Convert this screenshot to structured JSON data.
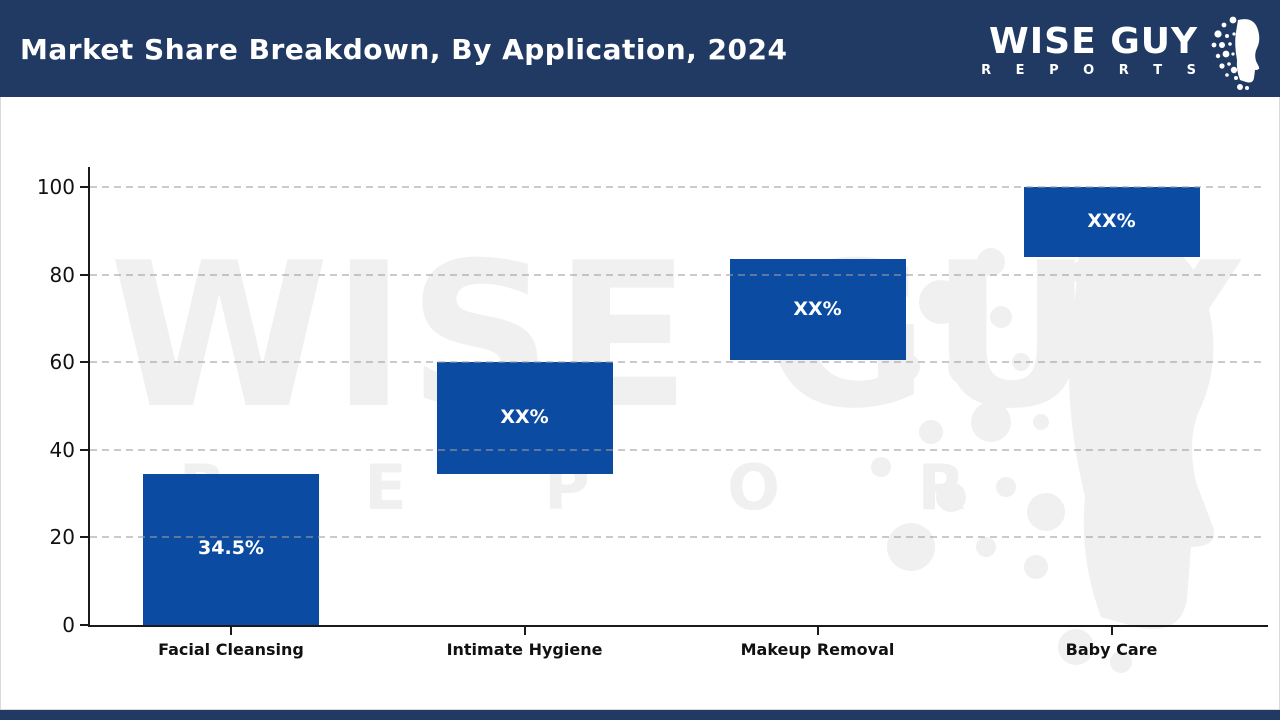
{
  "header": {
    "title": "Market Share Breakdown, By Application, 2024",
    "logo": {
      "line1": "WISE GUY",
      "line2": "R E P O R T S"
    }
  },
  "watermark": {
    "line1": "WISE GUY",
    "line2": "R E P O R T S"
  },
  "colors": {
    "header_bg": "#203a64",
    "footer_bg": "#203a64",
    "bar": "#0b4ba2",
    "bar_label_text": "#ffffff",
    "title_text": "#ffffff",
    "axis": "#1a1a1a",
    "gridline": "#c9c9c9",
    "watermark": "#f0f0f1"
  },
  "chart_data": {
    "type": "bar",
    "subtype": "waterfall",
    "title": "Market Share Breakdown, By Application, 2024",
    "xlabel": "",
    "ylabel": "",
    "categories": [
      "Facial Cleansing",
      "Intimate Hygiene",
      "Makeup Removal",
      "Baby Care"
    ],
    "segments": [
      {
        "category": "Facial Cleansing",
        "start": 0,
        "end": 34.5,
        "label": "34.5%"
      },
      {
        "category": "Intimate Hygiene",
        "start": 34.5,
        "end": 60,
        "label": "XX%"
      },
      {
        "category": "Makeup Removal",
        "start": 60.5,
        "end": 83.5,
        "label": "XX%"
      },
      {
        "category": "Baby Care",
        "start": 84,
        "end": 100,
        "label": "XX%"
      }
    ],
    "yticks": [
      0,
      20,
      40,
      60,
      80,
      100
    ],
    "ylim": [
      0,
      100
    ],
    "grid": "horizontal-dashed-over-bars",
    "legend": "none"
  }
}
